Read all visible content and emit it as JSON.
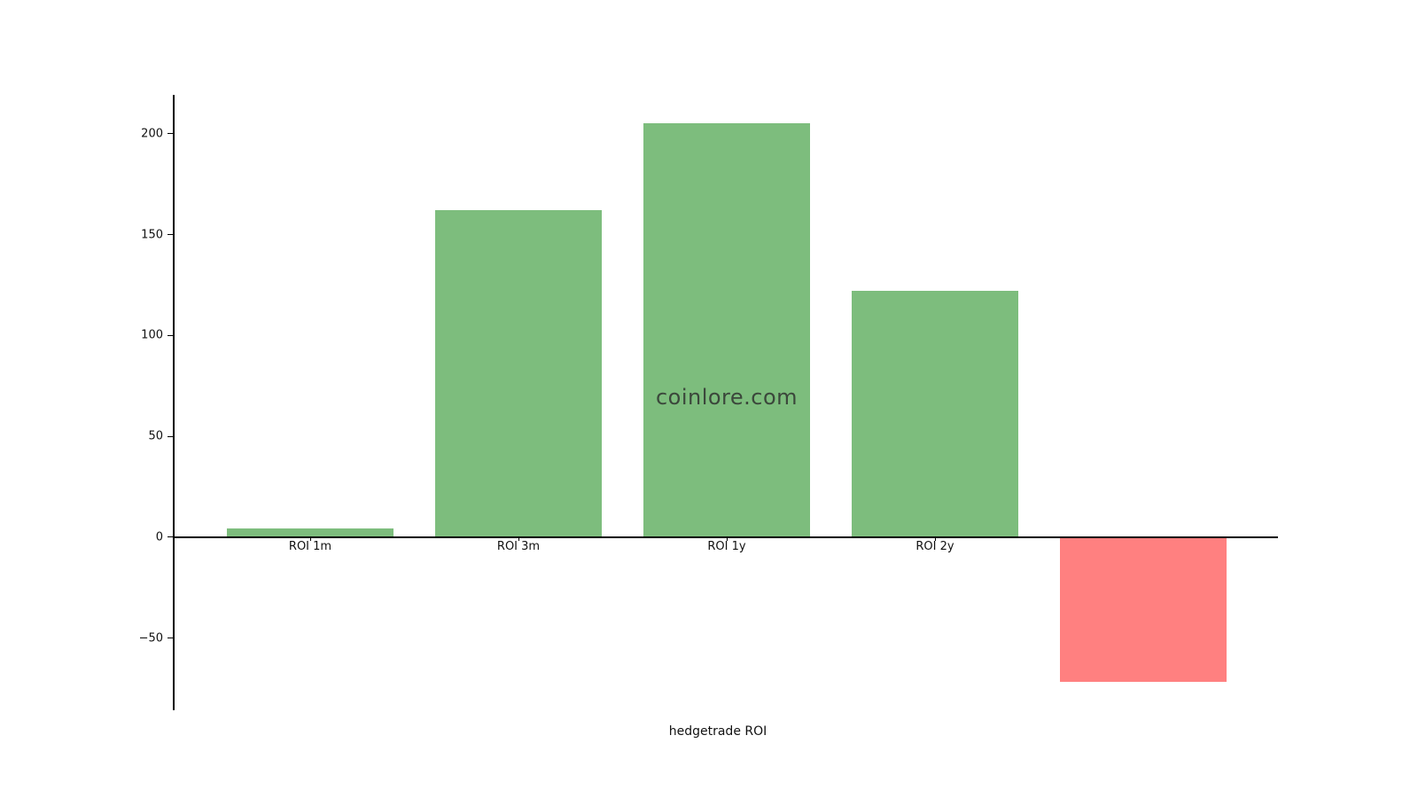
{
  "chart_data": {
    "type": "bar",
    "title": "hedgetrade ROI",
    "watermark": "coinlore.com",
    "categories": [
      "ROI 1m",
      "ROI 3m",
      "ROI 1y",
      "ROI 2y",
      ""
    ],
    "values": [
      4,
      162,
      205,
      122,
      -72
    ],
    "bar_colors": [
      "#7dbd7d",
      "#7dbd7d",
      "#7dbd7d",
      "#7dbd7d",
      "#ff8080"
    ],
    "positive_color": "#7dbd7d",
    "negative_color": "#ff8080",
    "yticks": [
      200,
      150,
      100,
      50,
      0,
      -50
    ],
    "ylim": [
      -86,
      219
    ],
    "xlabel": "",
    "ylabel": "",
    "grid": false,
    "legend_position": "none"
  },
  "colors": {
    "background": "#ffffff",
    "axis": "#000000",
    "tick_text": "#111111",
    "watermark_text": "rgba(45,45,45,0.82)"
  }
}
